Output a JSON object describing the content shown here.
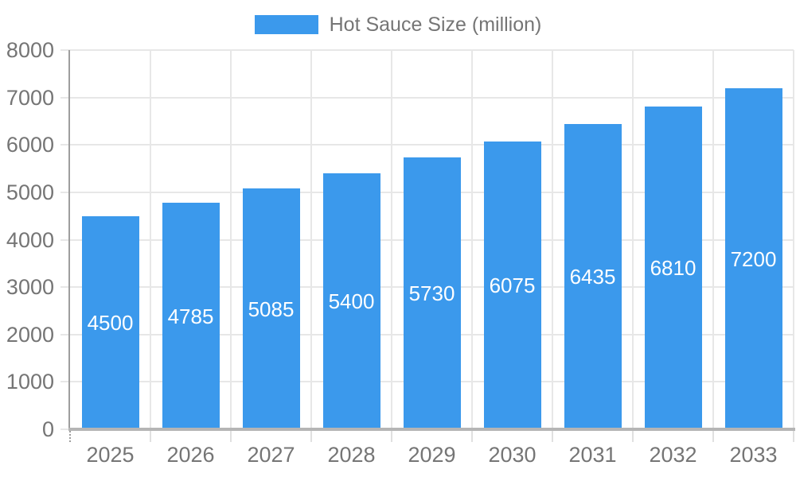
{
  "chart_data": {
    "type": "bar",
    "title": "",
    "categories": [
      "2025",
      "2026",
      "2027",
      "2028",
      "2029",
      "2030",
      "2031",
      "2032",
      "2033"
    ],
    "series": [
      {
        "name": "Hot Sauce Size (million)",
        "values": [
          4500,
          4785,
          5085,
          5400,
          5730,
          6075,
          6435,
          6810,
          7200
        ]
      }
    ],
    "value_labels_shown": true,
    "xlabel": "",
    "ylabel": "",
    "ylim": [
      0,
      8000
    ],
    "yticks": [
      0,
      1000,
      2000,
      3000,
      4000,
      5000,
      6000,
      7000,
      8000
    ],
    "grid": true,
    "legend_position": "top",
    "bar_color": "#3B99EC",
    "value_label_color": "#ffffff",
    "axis_text_color": "#757575",
    "gridline_color": "#e7e7e7",
    "axis_line_color": "#9e9e9e",
    "baseline_color": "#b5b5b5",
    "tick_color": "#e0e0e0",
    "background_color": "#ffffff"
  }
}
